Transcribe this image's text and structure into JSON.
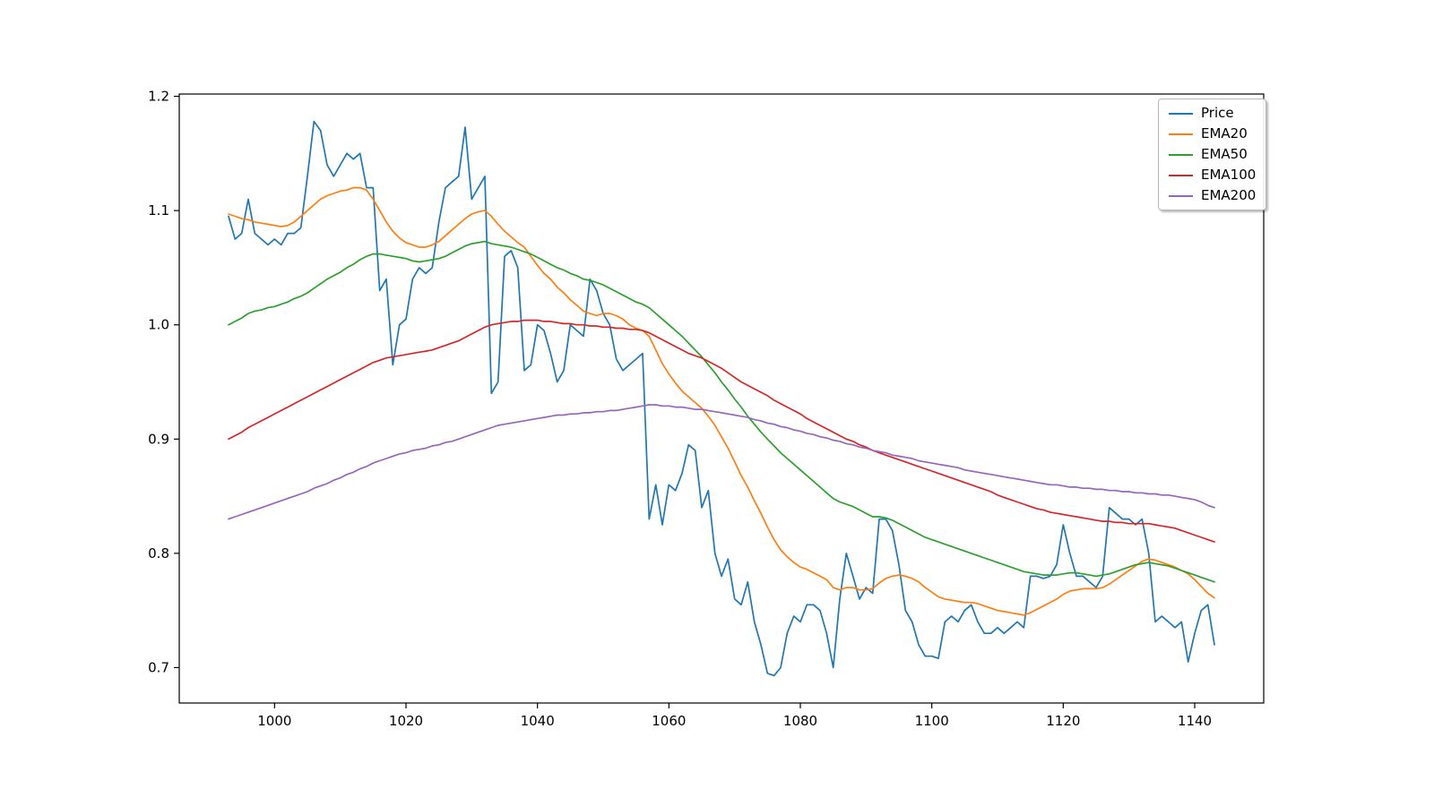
{
  "figure": {
    "background": "#ffffff"
  },
  "chart_data": {
    "type": "line",
    "title": "",
    "xlabel": "",
    "ylabel": "",
    "grid": false,
    "xlim": [
      985.5,
      1150.5
    ],
    "ylim": [
      0.669,
      1.202
    ],
    "x_ticks": [
      1000,
      1020,
      1040,
      1060,
      1080,
      1100,
      1120,
      1140
    ],
    "x_tick_labels": [
      "1000",
      "1020",
      "1040",
      "1060",
      "1080",
      "1100",
      "1120",
      "1140"
    ],
    "y_ticks": [
      0.7,
      0.8,
      0.9,
      1.0,
      1.1,
      1.2
    ],
    "y_tick_labels": [
      "0.7",
      "0.8",
      "0.9",
      "1.0",
      "1.1",
      "1.2"
    ],
    "legend": {
      "position": "upper right",
      "entries": [
        "Price",
        "EMA20",
        "EMA50",
        "EMA100",
        "EMA200"
      ]
    },
    "x": [
      993,
      994,
      995,
      996,
      997,
      998,
      999,
      1000,
      1001,
      1002,
      1003,
      1004,
      1005,
      1006,
      1007,
      1008,
      1009,
      1010,
      1011,
      1012,
      1013,
      1014,
      1015,
      1016,
      1017,
      1018,
      1019,
      1020,
      1021,
      1022,
      1023,
      1024,
      1025,
      1026,
      1027,
      1028,
      1029,
      1030,
      1031,
      1032,
      1033,
      1034,
      1035,
      1036,
      1037,
      1038,
      1039,
      1040,
      1041,
      1042,
      1043,
      1044,
      1045,
      1046,
      1047,
      1048,
      1049,
      1050,
      1051,
      1052,
      1053,
      1054,
      1055,
      1056,
      1057,
      1058,
      1059,
      1060,
      1061,
      1062,
      1063,
      1064,
      1065,
      1066,
      1067,
      1068,
      1069,
      1070,
      1071,
      1072,
      1073,
      1074,
      1075,
      1076,
      1077,
      1078,
      1079,
      1080,
      1081,
      1082,
      1083,
      1084,
      1085,
      1086,
      1087,
      1088,
      1089,
      1090,
      1091,
      1092,
      1093,
      1094,
      1095,
      1096,
      1097,
      1098,
      1099,
      1100,
      1101,
      1102,
      1103,
      1104,
      1105,
      1106,
      1107,
      1108,
      1109,
      1110,
      1111,
      1112,
      1113,
      1114,
      1115,
      1116,
      1117,
      1118,
      1119,
      1120,
      1121,
      1122,
      1123,
      1124,
      1125,
      1126,
      1127,
      1128,
      1129,
      1130,
      1131,
      1132,
      1133,
      1134,
      1135,
      1136,
      1137,
      1138,
      1139,
      1140,
      1141,
      1142,
      1143
    ],
    "series": [
      {
        "name": "Price",
        "color": "#1f77b4",
        "values": [
          1.095,
          1.075,
          1.08,
          1.11,
          1.08,
          1.075,
          1.07,
          1.075,
          1.07,
          1.08,
          1.08,
          1.085,
          1.13,
          1.178,
          1.17,
          1.14,
          1.13,
          1.14,
          1.15,
          1.145,
          1.15,
          1.12,
          1.12,
          1.03,
          1.04,
          0.965,
          1.0,
          1.005,
          1.04,
          1.05,
          1.045,
          1.05,
          1.09,
          1.12,
          1.125,
          1.13,
          1.173,
          1.11,
          1.12,
          1.13,
          0.94,
          0.95,
          1.06,
          1.065,
          1.05,
          0.96,
          0.965,
          1.0,
          0.995,
          0.975,
          0.95,
          0.96,
          1.0,
          0.995,
          0.99,
          1.04,
          1.03,
          1.01,
          1.0,
          0.97,
          0.96,
          0.965,
          0.97,
          0.975,
          0.83,
          0.86,
          0.825,
          0.86,
          0.855,
          0.87,
          0.895,
          0.89,
          0.84,
          0.855,
          0.8,
          0.78,
          0.795,
          0.76,
          0.755,
          0.775,
          0.74,
          0.72,
          0.695,
          0.693,
          0.7,
          0.73,
          0.745,
          0.74,
          0.755,
          0.755,
          0.75,
          0.73,
          0.7,
          0.76,
          0.8,
          0.78,
          0.76,
          0.77,
          0.765,
          0.83,
          0.83,
          0.82,
          0.79,
          0.75,
          0.74,
          0.72,
          0.71,
          0.71,
          0.708,
          0.74,
          0.745,
          0.74,
          0.75,
          0.755,
          0.74,
          0.73,
          0.73,
          0.735,
          0.73,
          0.735,
          0.74,
          0.735,
          0.78,
          0.78,
          0.778,
          0.78,
          0.79,
          0.825,
          0.8,
          0.78,
          0.78,
          0.775,
          0.77,
          0.78,
          0.84,
          0.835,
          0.83,
          0.83,
          0.825,
          0.83,
          0.8,
          0.74,
          0.745,
          0.74,
          0.735,
          0.74,
          0.705,
          0.73,
          0.75,
          0.755,
          0.72
        ]
      },
      {
        "name": "EMA20",
        "color": "#ff7f0e",
        "values": [
          1.097,
          1.095,
          1.093,
          1.092,
          1.09,
          1.089,
          1.088,
          1.087,
          1.086,
          1.087,
          1.09,
          1.095,
          1.1,
          1.105,
          1.11,
          1.113,
          1.115,
          1.117,
          1.118,
          1.12,
          1.12,
          1.118,
          1.11,
          1.1,
          1.09,
          1.082,
          1.076,
          1.072,
          1.07,
          1.068,
          1.068,
          1.07,
          1.073,
          1.078,
          1.083,
          1.088,
          1.093,
          1.097,
          1.099,
          1.1,
          1.095,
          1.088,
          1.082,
          1.077,
          1.072,
          1.068,
          1.06,
          1.052,
          1.045,
          1.04,
          1.033,
          1.028,
          1.022,
          1.017,
          1.012,
          1.01,
          1.008,
          1.01,
          1.01,
          1.008,
          1.005,
          1.0,
          0.997,
          0.995,
          0.99,
          0.978,
          0.966,
          0.957,
          0.949,
          0.942,
          0.937,
          0.932,
          0.927,
          0.92,
          0.912,
          0.902,
          0.892,
          0.88,
          0.868,
          0.858,
          0.846,
          0.835,
          0.823,
          0.812,
          0.803,
          0.797,
          0.792,
          0.788,
          0.786,
          0.783,
          0.78,
          0.777,
          0.77,
          0.768,
          0.77,
          0.77,
          0.768,
          0.768,
          0.769,
          0.774,
          0.778,
          0.78,
          0.781,
          0.78,
          0.778,
          0.775,
          0.77,
          0.766,
          0.762,
          0.76,
          0.759,
          0.758,
          0.757,
          0.757,
          0.756,
          0.754,
          0.752,
          0.75,
          0.749,
          0.748,
          0.747,
          0.746,
          0.748,
          0.751,
          0.754,
          0.757,
          0.76,
          0.764,
          0.767,
          0.768,
          0.769,
          0.769,
          0.769,
          0.77,
          0.773,
          0.777,
          0.781,
          0.785,
          0.789,
          0.793,
          0.795,
          0.794,
          0.792,
          0.79,
          0.788,
          0.785,
          0.782,
          0.777,
          0.771,
          0.765,
          0.761
        ]
      },
      {
        "name": "EMA50",
        "color": "#2ca02c",
        "values": [
          1.0,
          1.003,
          1.006,
          1.01,
          1.012,
          1.013,
          1.015,
          1.016,
          1.018,
          1.02,
          1.023,
          1.025,
          1.028,
          1.032,
          1.036,
          1.04,
          1.043,
          1.046,
          1.05,
          1.053,
          1.057,
          1.06,
          1.062,
          1.062,
          1.061,
          1.06,
          1.059,
          1.058,
          1.056,
          1.055,
          1.056,
          1.057,
          1.058,
          1.06,
          1.063,
          1.066,
          1.069,
          1.071,
          1.072,
          1.073,
          1.071,
          1.07,
          1.069,
          1.068,
          1.066,
          1.064,
          1.062,
          1.059,
          1.056,
          1.053,
          1.05,
          1.048,
          1.045,
          1.043,
          1.04,
          1.039,
          1.037,
          1.035,
          1.032,
          1.029,
          1.026,
          1.023,
          1.02,
          1.018,
          1.015,
          1.01,
          1.005,
          1.0,
          0.995,
          0.99,
          0.984,
          0.978,
          0.972,
          0.965,
          0.958,
          0.95,
          0.943,
          0.935,
          0.928,
          0.92,
          0.913,
          0.906,
          0.9,
          0.894,
          0.888,
          0.883,
          0.878,
          0.873,
          0.868,
          0.863,
          0.858,
          0.853,
          0.848,
          0.845,
          0.843,
          0.841,
          0.838,
          0.835,
          0.832,
          0.832,
          0.831,
          0.829,
          0.826,
          0.823,
          0.82,
          0.817,
          0.814,
          0.812,
          0.81,
          0.808,
          0.806,
          0.804,
          0.802,
          0.8,
          0.798,
          0.796,
          0.794,
          0.792,
          0.79,
          0.788,
          0.786,
          0.784,
          0.783,
          0.782,
          0.781,
          0.781,
          0.781,
          0.782,
          0.783,
          0.783,
          0.782,
          0.781,
          0.78,
          0.781,
          0.782,
          0.784,
          0.786,
          0.788,
          0.79,
          0.791,
          0.792,
          0.791,
          0.79,
          0.789,
          0.787,
          0.785,
          0.783,
          0.781,
          0.779,
          0.777,
          0.775
        ]
      },
      {
        "name": "EMA100",
        "color": "#d62728",
        "values": [
          0.9,
          0.903,
          0.906,
          0.91,
          0.913,
          0.916,
          0.919,
          0.922,
          0.925,
          0.928,
          0.931,
          0.934,
          0.937,
          0.94,
          0.943,
          0.946,
          0.949,
          0.952,
          0.955,
          0.958,
          0.961,
          0.964,
          0.967,
          0.969,
          0.971,
          0.972,
          0.973,
          0.974,
          0.975,
          0.976,
          0.977,
          0.978,
          0.98,
          0.982,
          0.984,
          0.986,
          0.989,
          0.992,
          0.995,
          0.998,
          1.0,
          1.001,
          1.002,
          1.003,
          1.003,
          1.004,
          1.004,
          1.004,
          1.003,
          1.003,
          1.002,
          1.001,
          1.001,
          1.0,
          1.0,
          0.999,
          0.999,
          0.998,
          0.998,
          0.997,
          0.997,
          0.996,
          0.996,
          0.995,
          0.993,
          0.99,
          0.987,
          0.984,
          0.981,
          0.978,
          0.975,
          0.973,
          0.971,
          0.968,
          0.965,
          0.962,
          0.958,
          0.954,
          0.95,
          0.947,
          0.944,
          0.941,
          0.938,
          0.934,
          0.931,
          0.928,
          0.925,
          0.922,
          0.918,
          0.915,
          0.912,
          0.909,
          0.906,
          0.903,
          0.9,
          0.898,
          0.895,
          0.893,
          0.89,
          0.888,
          0.886,
          0.884,
          0.882,
          0.88,
          0.878,
          0.876,
          0.874,
          0.872,
          0.87,
          0.868,
          0.866,
          0.864,
          0.862,
          0.86,
          0.858,
          0.856,
          0.854,
          0.851,
          0.849,
          0.847,
          0.845,
          0.843,
          0.841,
          0.839,
          0.838,
          0.836,
          0.835,
          0.834,
          0.833,
          0.832,
          0.831,
          0.83,
          0.829,
          0.828,
          0.828,
          0.827,
          0.827,
          0.826,
          0.826,
          0.826,
          0.826,
          0.825,
          0.824,
          0.823,
          0.822,
          0.82,
          0.818,
          0.816,
          0.814,
          0.812,
          0.81
        ]
      },
      {
        "name": "EMA200",
        "color": "#9467bd",
        "values": [
          0.83,
          0.832,
          0.834,
          0.836,
          0.838,
          0.84,
          0.842,
          0.844,
          0.846,
          0.848,
          0.85,
          0.852,
          0.854,
          0.857,
          0.859,
          0.861,
          0.864,
          0.866,
          0.869,
          0.871,
          0.874,
          0.876,
          0.879,
          0.881,
          0.883,
          0.885,
          0.887,
          0.888,
          0.89,
          0.891,
          0.892,
          0.894,
          0.895,
          0.897,
          0.898,
          0.9,
          0.902,
          0.904,
          0.906,
          0.908,
          0.91,
          0.912,
          0.913,
          0.914,
          0.915,
          0.916,
          0.917,
          0.918,
          0.919,
          0.92,
          0.921,
          0.921,
          0.922,
          0.922,
          0.923,
          0.923,
          0.924,
          0.924,
          0.925,
          0.925,
          0.926,
          0.927,
          0.928,
          0.929,
          0.93,
          0.93,
          0.929,
          0.929,
          0.928,
          0.928,
          0.927,
          0.926,
          0.926,
          0.925,
          0.924,
          0.923,
          0.922,
          0.921,
          0.92,
          0.919,
          0.917,
          0.916,
          0.914,
          0.913,
          0.911,
          0.91,
          0.908,
          0.907,
          0.905,
          0.904,
          0.902,
          0.901,
          0.899,
          0.898,
          0.896,
          0.895,
          0.893,
          0.892,
          0.89,
          0.889,
          0.888,
          0.886,
          0.885,
          0.884,
          0.883,
          0.881,
          0.88,
          0.879,
          0.878,
          0.877,
          0.876,
          0.875,
          0.873,
          0.872,
          0.871,
          0.87,
          0.869,
          0.868,
          0.867,
          0.866,
          0.865,
          0.864,
          0.863,
          0.862,
          0.861,
          0.86,
          0.86,
          0.859,
          0.858,
          0.858,
          0.857,
          0.857,
          0.856,
          0.856,
          0.855,
          0.855,
          0.854,
          0.854,
          0.853,
          0.853,
          0.852,
          0.852,
          0.851,
          0.851,
          0.85,
          0.849,
          0.848,
          0.847,
          0.845,
          0.842,
          0.84
        ]
      }
    ]
  }
}
